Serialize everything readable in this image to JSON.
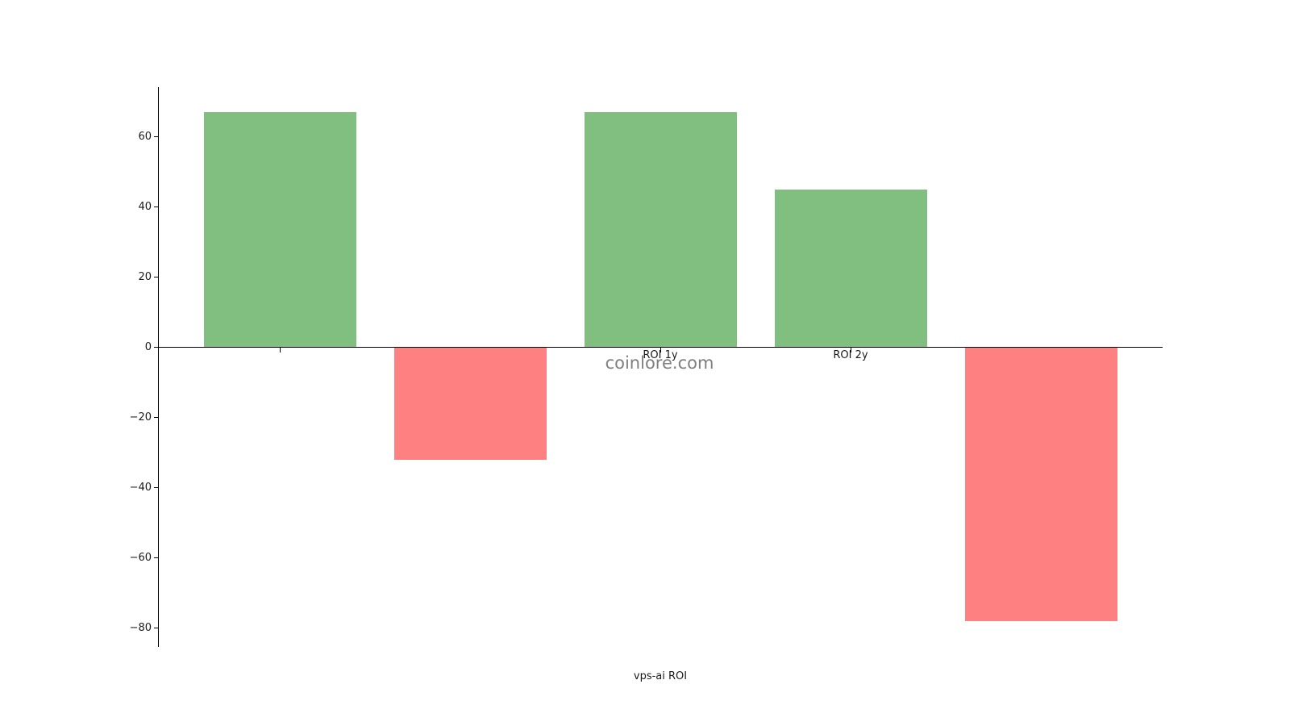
{
  "page": {
    "background": "#ffffff"
  },
  "chart_data": {
    "type": "bar",
    "categories": [
      "",
      "",
      "ROI 1y",
      "ROI 2y",
      ""
    ],
    "values": [
      67,
      -32,
      67,
      45,
      -78
    ],
    "title": "",
    "xlabel": "vps-ai ROI",
    "ylabel": "",
    "ylim": [
      -85.25,
      74.25
    ],
    "yticks": [
      60,
      40,
      20,
      0,
      -20,
      -40,
      -60,
      -80
    ],
    "positive_color": "#80bf80",
    "negative_color": "#ff8080",
    "bar_colors": [
      "#80bf80",
      "#ff8080",
      "#80bf80",
      "#80bf80",
      "#ff8080"
    ],
    "axis_color": "#000000",
    "tick_label_color": "#1a1a1a",
    "watermark": "coinlore.com",
    "watermark_color": "#7f7f7f",
    "grid": false,
    "legend_position": "none"
  }
}
